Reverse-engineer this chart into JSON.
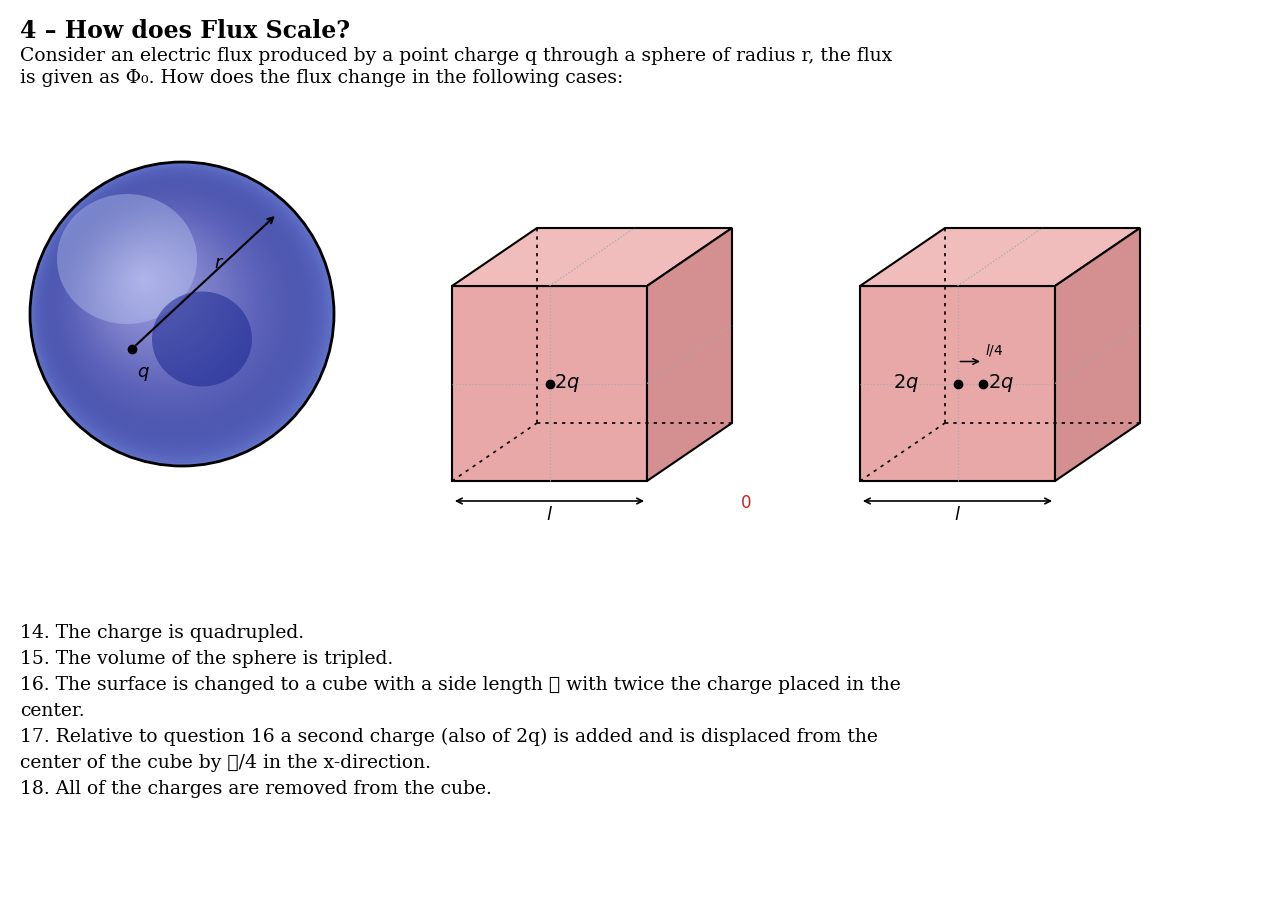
{
  "title": "4 – How does Flux Scale?",
  "intro_line1": "Consider an electric flux produced by a point charge q through a sphere of radius r, the flux",
  "intro_line2": "is given as Φ₀. How does the flux change in the following cases:",
  "q14": "14. The charge is quadrupled.",
  "q15": "15. The volume of the sphere is tripled.",
  "q16a": "16. The surface is changed to a cube with a side length ℓ with twice the charge placed in the",
  "q16b": "center.",
  "q17a": "17. Relative to question 16 a second charge (also of 2q) is added and is displaced from the",
  "q17b": "center of the cube by ℓ/4 in the x-direction.",
  "q18": "18. All of the charges are removed from the cube.",
  "bg_color": "#ffffff",
  "text_color": "#000000",
  "sphere_base": "#7788dd",
  "sphere_dark": "#2233aa",
  "sphere_highlight": "#aabbee",
  "cube_front": "#e8a8a8",
  "cube_top": "#f0bcbc",
  "cube_right": "#d49090",
  "cube_edge": "#000000"
}
